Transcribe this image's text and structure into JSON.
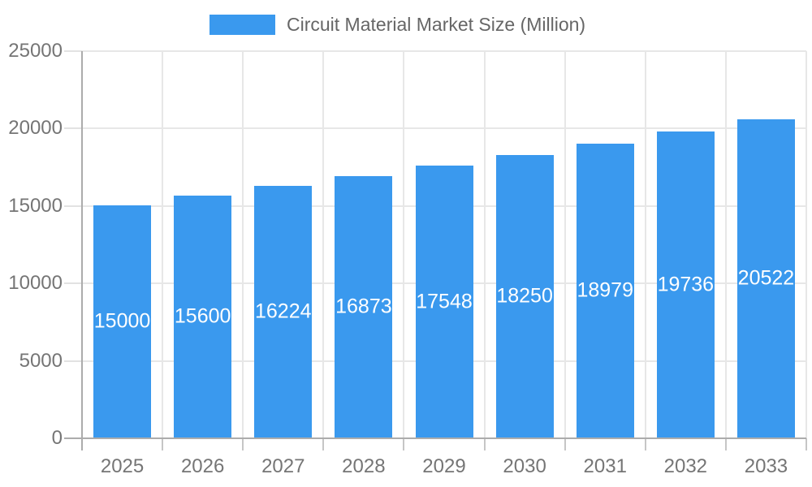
{
  "legend": {
    "label": "Circuit Material Market Size (Million)"
  },
  "colors": {
    "bar": "#3A99EE",
    "axis": "#ACACAC",
    "grid": "#E7E7E7",
    "tick_x": "#C6C6C6",
    "tick_y": "#E2E2E2",
    "label": "#757575",
    "legend_text": "#666666",
    "bar_label": "#FFFFFF",
    "background": "#FFFFFF"
  },
  "chart_data": {
    "type": "bar",
    "title": "Circuit Material Market Size (Million)",
    "categories": [
      "2025",
      "2026",
      "2027",
      "2028",
      "2029",
      "2030",
      "2031",
      "2032",
      "2033"
    ],
    "values": [
      15000,
      15600,
      16224,
      16873,
      17548,
      18250,
      18979,
      19736,
      20522
    ],
    "xlabel": "",
    "ylabel": "",
    "ylim": [
      0,
      25000
    ],
    "ytick_step": 5000,
    "yticks": [
      "0",
      "5000",
      "10000",
      "15000",
      "20000",
      "25000"
    ],
    "grid": true,
    "legend_position": "top-center",
    "value_labels": "white, centered inside bars"
  }
}
